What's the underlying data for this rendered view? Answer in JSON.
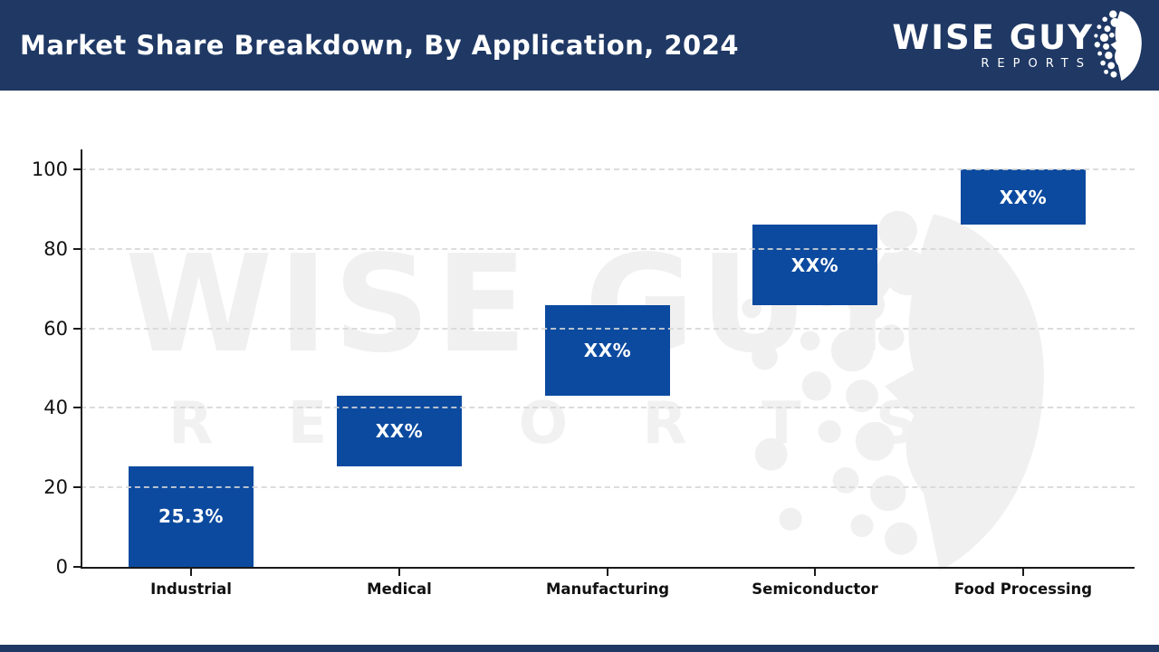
{
  "header": {
    "title": "Market Share Breakdown, By Application, 2024",
    "logo": {
      "brand": "WISE GUY",
      "sub": "REPORTS"
    }
  },
  "watermark": {
    "brand": "WISE GUY",
    "sub": "R E P O R T S"
  },
  "colors": {
    "header_bg": "#1f3864",
    "bar": "#0b4a9f",
    "bar_label": "#ffffff",
    "gridline": "#d6d6d6",
    "axis": "#1a1a1a",
    "watermark": "#f0f0f0"
  },
  "chart_data": {
    "type": "bar",
    "variant": "waterfall",
    "title": "Market Share Breakdown, By Application, 2024",
    "categories": [
      "Industrial",
      "Medical",
      "Manufacturing",
      "Semiconductor",
      "Food Processing"
    ],
    "segments": [
      {
        "category": "Industrial",
        "start": 0,
        "end": 25.3,
        "label": "25.3%"
      },
      {
        "category": "Medical",
        "start": 25.3,
        "end": 43.0,
        "label": "XX%"
      },
      {
        "category": "Manufacturing",
        "start": 43.0,
        "end": 65.8,
        "label": "XX%"
      },
      {
        "category": "Semiconductor",
        "start": 65.8,
        "end": 86.1,
        "label": "XX%"
      },
      {
        "category": "Food Processing",
        "start": 86.1,
        "end": 100,
        "label": "XX%"
      }
    ],
    "xlabel": "",
    "ylabel": "",
    "yticks": [
      0,
      20,
      40,
      60,
      80,
      100
    ],
    "ylim": [
      0,
      104
    ],
    "grid": "horizontal-dashed",
    "legend": "none",
    "bar_color": "#0b4a9f",
    "bar_label_color": "#ffffff"
  }
}
